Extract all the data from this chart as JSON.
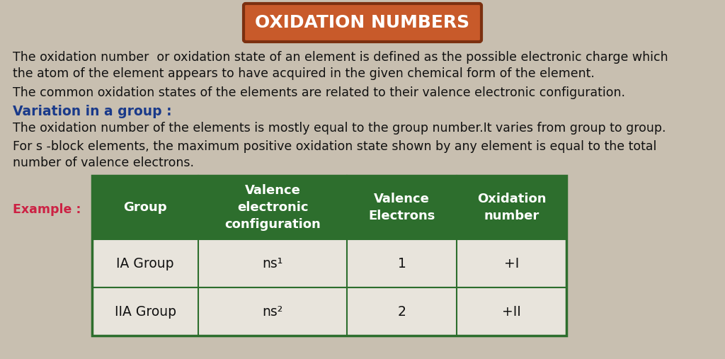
{
  "title": "OXIDATION NUMBERS",
  "title_bg": "#C85A2A",
  "title_border": "#7B3010",
  "title_text_color": "#FFFFFF",
  "bg_color": "#C8BFB0",
  "para1_line1": "The oxidation number  or oxidation state of an element is defined as the possible electronic charge which",
  "para1_line2": "the atom of the element appears to have acquired in the given chemical form of the element.",
  "para2": "The common oxidation states of the elements are related to their valence electronic configuration.",
  "variation_label": "Variation in a group :",
  "variation_color": "#1A3A8A",
  "para3": "The oxidation number of the elements is mostly equal to the group number.It varies from group to group.",
  "para4_line1": "For s -block elements, the maximum positive oxidation state shown by any element is equal to the total",
  "para4_line2": "number of valence electrons.",
  "example_label": "Example :",
  "example_color": "#CC2244",
  "table_header_bg": "#2D6E2D",
  "table_header_text": "#FFFFFF",
  "table_row_bg": "#E8E4DC",
  "table_border": "#2D6E2D",
  "col_headers": [
    "Group",
    "Valence\nelectronic\nconfiguration",
    "Valence\nElectrons",
    "Oxidation\nnumber"
  ],
  "rows": [
    [
      "IA Group",
      "ns¹",
      "1",
      "+I"
    ],
    [
      "IIA Group",
      "ns²",
      "2",
      "+II"
    ]
  ],
  "text_color": "#111111",
  "body_fontsize": 12.5,
  "header_fontsize": 13.0,
  "title_fontsize": 18
}
